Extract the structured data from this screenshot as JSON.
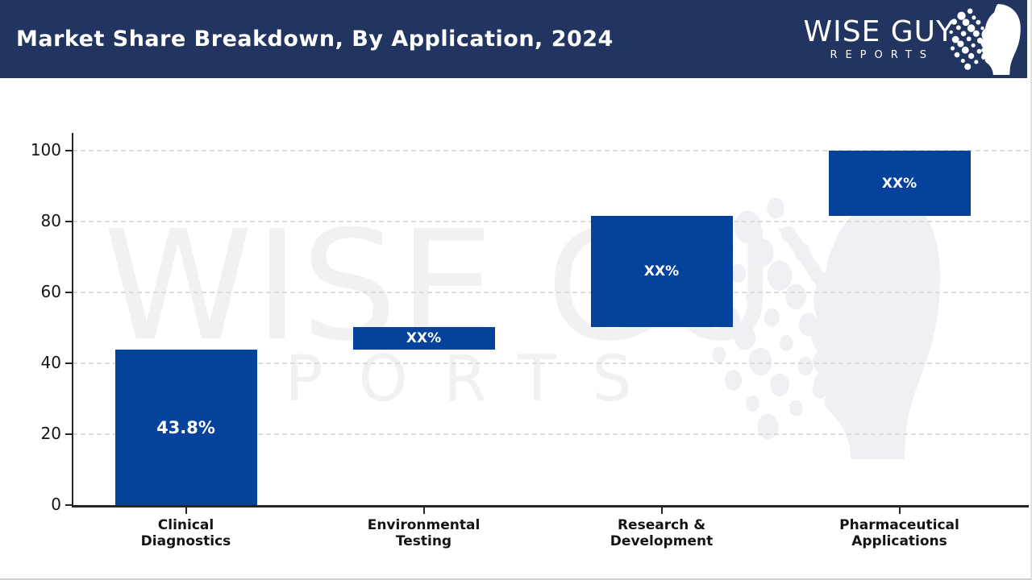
{
  "header": {
    "title": "Market Share Breakdown, By Application, 2024",
    "bg_color": "#213560",
    "logo": {
      "name": "WISE GUY",
      "sub": "REPORTS"
    }
  },
  "watermark": {
    "line1": "WISE GUY",
    "line2": "REPORTS"
  },
  "chart_data": {
    "type": "bar",
    "subtype": "waterfall",
    "title": "Market Share Breakdown, By Application, 2024",
    "categories": [
      "Clinical Diagnostics",
      "Environmental Testing",
      "Research & Development",
      "Pharmaceutical Applications"
    ],
    "categories_lines": [
      [
        "Clinical",
        "Diagnostics"
      ],
      [
        "Environmental",
        "Testing"
      ],
      [
        "Research &",
        "Development"
      ],
      [
        "Pharmaceutical",
        "Applications"
      ]
    ],
    "segments": [
      {
        "category": "Clinical Diagnostics",
        "label": "43.8%",
        "start": 0,
        "end": 43.8
      },
      {
        "category": "Environmental Testing",
        "label": "XX%",
        "start": 43.8,
        "end": 50.3
      },
      {
        "category": "Research & Development",
        "label": "XX%",
        "start": 50.3,
        "end": 81.5
      },
      {
        "category": "Pharmaceutical Applications",
        "label": "XX%",
        "start": 81.5,
        "end": 100
      }
    ],
    "xlabel": "",
    "ylabel": "",
    "yticks": [
      0,
      20,
      40,
      60,
      80,
      100
    ],
    "ylim": [
      0,
      105
    ],
    "grid": "horizontal dashed",
    "legend": "none",
    "bar_color": "#04429c",
    "bar_label_color": "#ffffff",
    "axis_color": "#262626",
    "grid_color": "#dcdcdc"
  }
}
